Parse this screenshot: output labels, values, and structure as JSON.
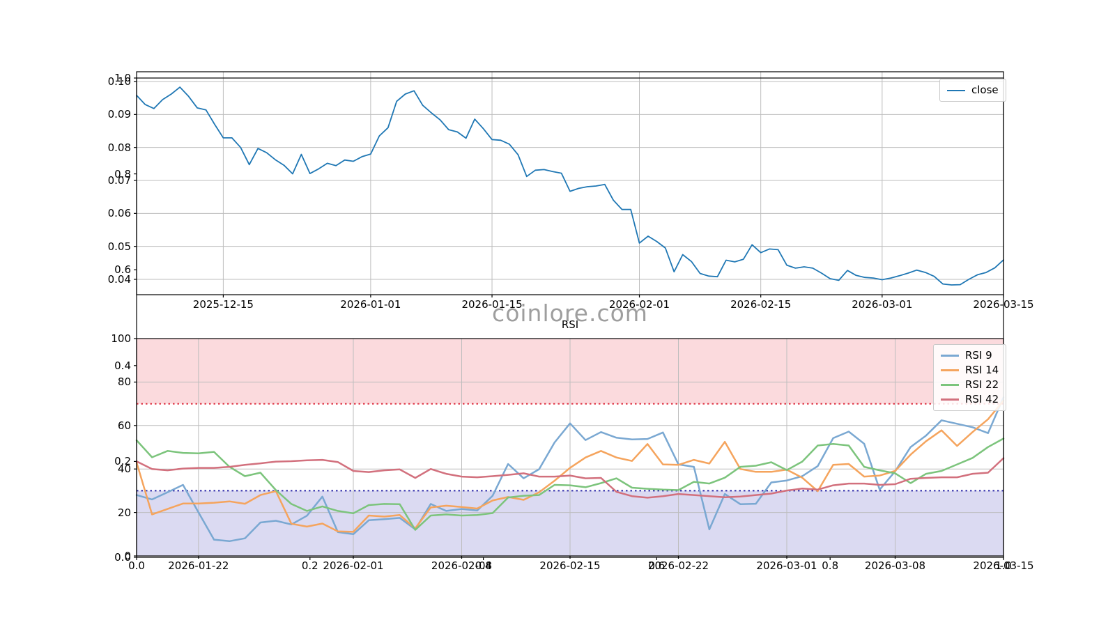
{
  "page": {
    "watermark": "coinlore.com"
  },
  "overlay_axis": {
    "y_tick_labels": [
      "1.0",
      "0.8",
      "0.6",
      "0.4",
      "0.2",
      "0.0"
    ],
    "x_tick_labels": [
      "0.0",
      "0.2",
      "0.4",
      "0.6",
      "0.8",
      "1.0"
    ]
  },
  "chart_data": [
    {
      "type": "line",
      "title": "",
      "legend": [
        "close"
      ],
      "legend_position": "upper right",
      "grid": true,
      "x_start": "2025-12-05",
      "x_end": "2026-03-15",
      "x_freq": "daily",
      "x_tick_labels": [
        "2025-12-15",
        "2026-01-01",
        "2026-01-15",
        "2026-02-01",
        "2026-02-15",
        "2026-03-01",
        "2026-03-15"
      ],
      "x_tick_day_index": [
        10,
        27,
        41,
        58,
        72,
        86,
        100
      ],
      "y_tick_labels": [
        "0.10",
        "0.09",
        "0.08",
        "0.07",
        "0.06",
        "0.05",
        "0.04"
      ],
      "y_tick_values": [
        0.1,
        0.09,
        0.08,
        0.07,
        0.06,
        0.05,
        0.04
      ],
      "ylim": [
        0.03535,
        0.10296
      ],
      "series": [
        {
          "name": "close",
          "color": "#1f77b4",
          "values": [
            0.0958,
            0.093,
            0.0918,
            0.0945,
            0.0962,
            0.0983,
            0.0955,
            0.092,
            0.0914,
            0.087,
            0.0829,
            0.0829,
            0.08,
            0.0748,
            0.0797,
            0.0784,
            0.0763,
            0.0746,
            0.072,
            0.0779,
            0.0721,
            0.0735,
            0.0752,
            0.0745,
            0.0762,
            0.0758,
            0.0772,
            0.078,
            0.0835,
            0.086,
            0.094,
            0.0962,
            0.0972,
            0.0928,
            0.0905,
            0.0884,
            0.0854,
            0.0847,
            0.0828,
            0.0886,
            0.0857,
            0.0824,
            0.0822,
            0.081,
            0.0778,
            0.0712,
            0.0731,
            0.0733,
            0.0727,
            0.0722,
            0.0667,
            0.0676,
            0.0681,
            0.0683,
            0.0688,
            0.064,
            0.0612,
            0.0612,
            0.051,
            0.0531,
            0.0515,
            0.0495,
            0.0423,
            0.0475,
            0.0454,
            0.0418,
            0.041,
            0.0408,
            0.0458,
            0.0453,
            0.0461,
            0.0505,
            0.0481,
            0.0492,
            0.049,
            0.0443,
            0.0434,
            0.0438,
            0.0434,
            0.0419,
            0.0402,
            0.0397,
            0.0427,
            0.0412,
            0.0406,
            0.0404,
            0.0399,
            0.0404,
            0.0411,
            0.0419,
            0.0428,
            0.0421,
            0.0409,
            0.0386,
            0.0383,
            0.0384,
            0.04,
            0.0414,
            0.0421,
            0.0435,
            0.0459
          ]
        }
      ]
    },
    {
      "type": "line",
      "title": "RSI",
      "legend": [
        "RSI 9",
        "RSI 14",
        "RSI 22",
        "RSI 42"
      ],
      "legend_position": "upper right",
      "grid": true,
      "x_start": "2026-01-18",
      "x_end": "2026-03-15",
      "x_freq": "daily",
      "x_tick_labels": [
        "2026-01-22",
        "2026-02-01",
        "2026-02-08",
        "2026-02-15",
        "2026-02-22",
        "2026-03-01",
        "2026-03-08",
        "2026-03-15"
      ],
      "x_tick_day_index": [
        4,
        14,
        21,
        28,
        35,
        42,
        49,
        56
      ],
      "y_tick_labels": [
        "100",
        "80",
        "60",
        "40",
        "20",
        "0"
      ],
      "y_tick_values": [
        100,
        80,
        60,
        40,
        20,
        0
      ],
      "ylim": [
        0,
        100
      ],
      "overbought_level": 70,
      "oversold_level": 30,
      "bands": [
        {
          "name": "overbought",
          "from": 70,
          "to": 100,
          "fill": "#fbdadd",
          "line_color": "#dc2839"
        },
        {
          "name": "oversold",
          "from": 0,
          "to": 30,
          "fill": "#dbdaf2",
          "line_color": "#2b27a8"
        }
      ],
      "series": [
        {
          "name": "RSI 9",
          "color": "#7aa8d2",
          "values": [
            28.0,
            26.0,
            29.3,
            32.7,
            20.0,
            7.5,
            6.8,
            8.1,
            15.4,
            16.2,
            14.5,
            18.5,
            27.3,
            11.0,
            10.0,
            16.4,
            16.9,
            17.5,
            12.2,
            23.9,
            20.7,
            21.6,
            20.9,
            27.7,
            42.3,
            35.7,
            39.9,
            52.2,
            61.0,
            53.3,
            57.0,
            54.4,
            53.6,
            53.8,
            56.8,
            42.1,
            41.0,
            12.2,
            28.5,
            23.8,
            24.0,
            33.8,
            34.7,
            36.7,
            41.3,
            54.2,
            57.2,
            51.6,
            30.5,
            38.9,
            50.1,
            55.4,
            62.4,
            60.8,
            59.2,
            56.5,
            73.0
          ]
        },
        {
          "name": "RSI 14",
          "color": "#f5a45d",
          "values": [
            43.0,
            19.1,
            21.6,
            24.1,
            24.1,
            24.5,
            25.1,
            24.0,
            28.0,
            29.8,
            14.8,
            13.5,
            14.9,
            11.3,
            11.1,
            18.6,
            18.1,
            18.8,
            12.7,
            22.3,
            23.1,
            22.5,
            21.8,
            25.5,
            27.1,
            25.8,
            29.3,
            34.6,
            40.5,
            45.3,
            48.3,
            45.3,
            43.7,
            51.5,
            42.1,
            41.9,
            44.2,
            42.5,
            52.5,
            40.0,
            38.7,
            38.7,
            39.7,
            36.0,
            29.8,
            41.9,
            42.3,
            36.5,
            37.0,
            39.1,
            46.6,
            52.8,
            57.8,
            50.6,
            57.0,
            62.9,
            71.5
          ]
        },
        {
          "name": "RSI 22",
          "color": "#7cc47c",
          "values": [
            53.2,
            45.4,
            48.3,
            47.4,
            47.2,
            47.9,
            41.0,
            36.7,
            38.3,
            30.3,
            23.9,
            20.7,
            22.8,
            20.7,
            19.6,
            23.4,
            23.9,
            23.8,
            12.0,
            18.6,
            19.1,
            18.6,
            18.8,
            19.7,
            26.9,
            27.7,
            28.0,
            32.7,
            32.5,
            31.6,
            33.5,
            35.7,
            31.4,
            30.9,
            30.5,
            30.3,
            34.1,
            33.3,
            36.0,
            41.0,
            41.5,
            43.1,
            39.5,
            43.4,
            50.8,
            51.5,
            50.8,
            41.0,
            39.4,
            38.0,
            33.5,
            37.8,
            39.1,
            42.1,
            45.1,
            50.1,
            54.0
          ]
        },
        {
          "name": "RSI 42",
          "color": "#d2707d",
          "values": [
            43.5,
            40.0,
            39.4,
            40.2,
            40.5,
            40.5,
            41.0,
            41.9,
            42.6,
            43.4,
            43.6,
            44.0,
            44.2,
            43.2,
            39.1,
            38.6,
            39.4,
            39.8,
            35.9,
            40.0,
            37.8,
            36.5,
            36.2,
            36.7,
            37.3,
            38.0,
            36.5,
            36.5,
            37.0,
            35.7,
            35.9,
            29.5,
            27.5,
            26.8,
            27.5,
            28.5,
            28.0,
            27.5,
            27.0,
            27.3,
            28.0,
            28.7,
            30.1,
            31.0,
            30.5,
            32.5,
            33.3,
            33.3,
            32.7,
            33.0,
            35.5,
            35.9,
            36.2,
            36.2,
            37.8,
            38.3,
            45.0
          ]
        }
      ]
    }
  ],
  "style": {
    "grid_color": "#bdbdbd",
    "spine_color": "#000000",
    "watermark_color": "#9e9e9e"
  }
}
